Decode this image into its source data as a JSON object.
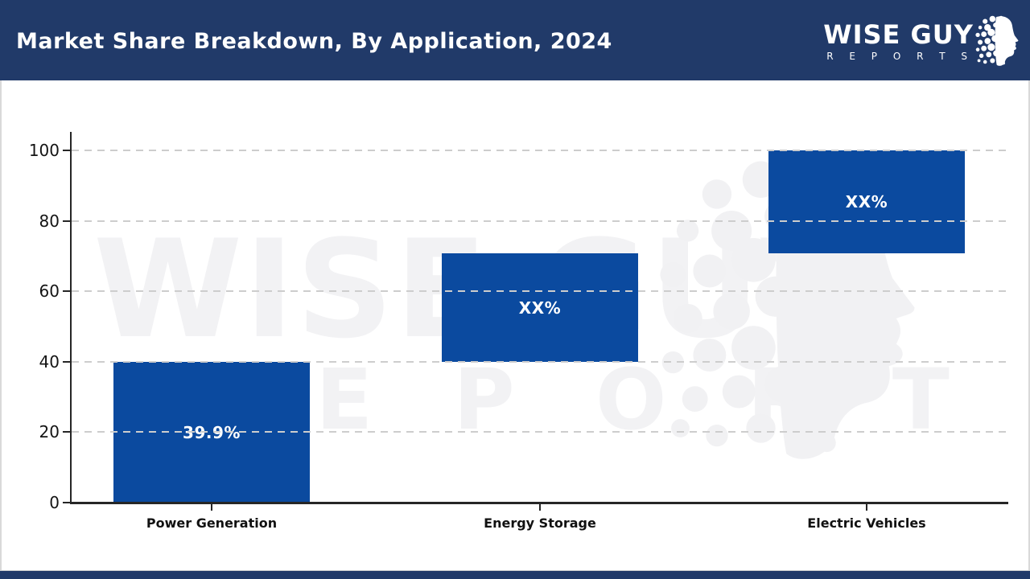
{
  "header": {
    "title": "Market Share Breakdown, By Application, 2024",
    "bg_color": "#213a69",
    "logo": {
      "line1": "WISE GUY",
      "line2": "R E P O R T S"
    }
  },
  "watermark": {
    "line1": "WISE GUY",
    "line2": "R E P O R T S"
  },
  "chart_data": {
    "type": "bar",
    "subtype": "waterfall",
    "title": "Market Share Breakdown, By Application, 2024",
    "categories": [
      "Power Generation",
      "Energy Storage",
      "Electric Vehicles"
    ],
    "segments": [
      {
        "category": "Power Generation",
        "from": 0,
        "to": 39.9,
        "label": "39.9%"
      },
      {
        "category": "Energy Storage",
        "from": 39.9,
        "to": 70.8,
        "label": "XX%"
      },
      {
        "category": "Electric Vehicles",
        "from": 70.8,
        "to": 100,
        "label": "XX%"
      }
    ],
    "bar_labels": [
      "39.9%",
      "XX%",
      "XX%"
    ],
    "yticks": [
      0,
      20,
      40,
      60,
      80,
      100
    ],
    "ylim": [
      0,
      105
    ],
    "xlabel": "",
    "ylabel": "",
    "bar_color": "#0b4a9f",
    "grid": "horizontal-dashed",
    "gridline_color": "#cdcdcd",
    "axis_color": "#262626",
    "value_label_color": "#ffffff"
  }
}
